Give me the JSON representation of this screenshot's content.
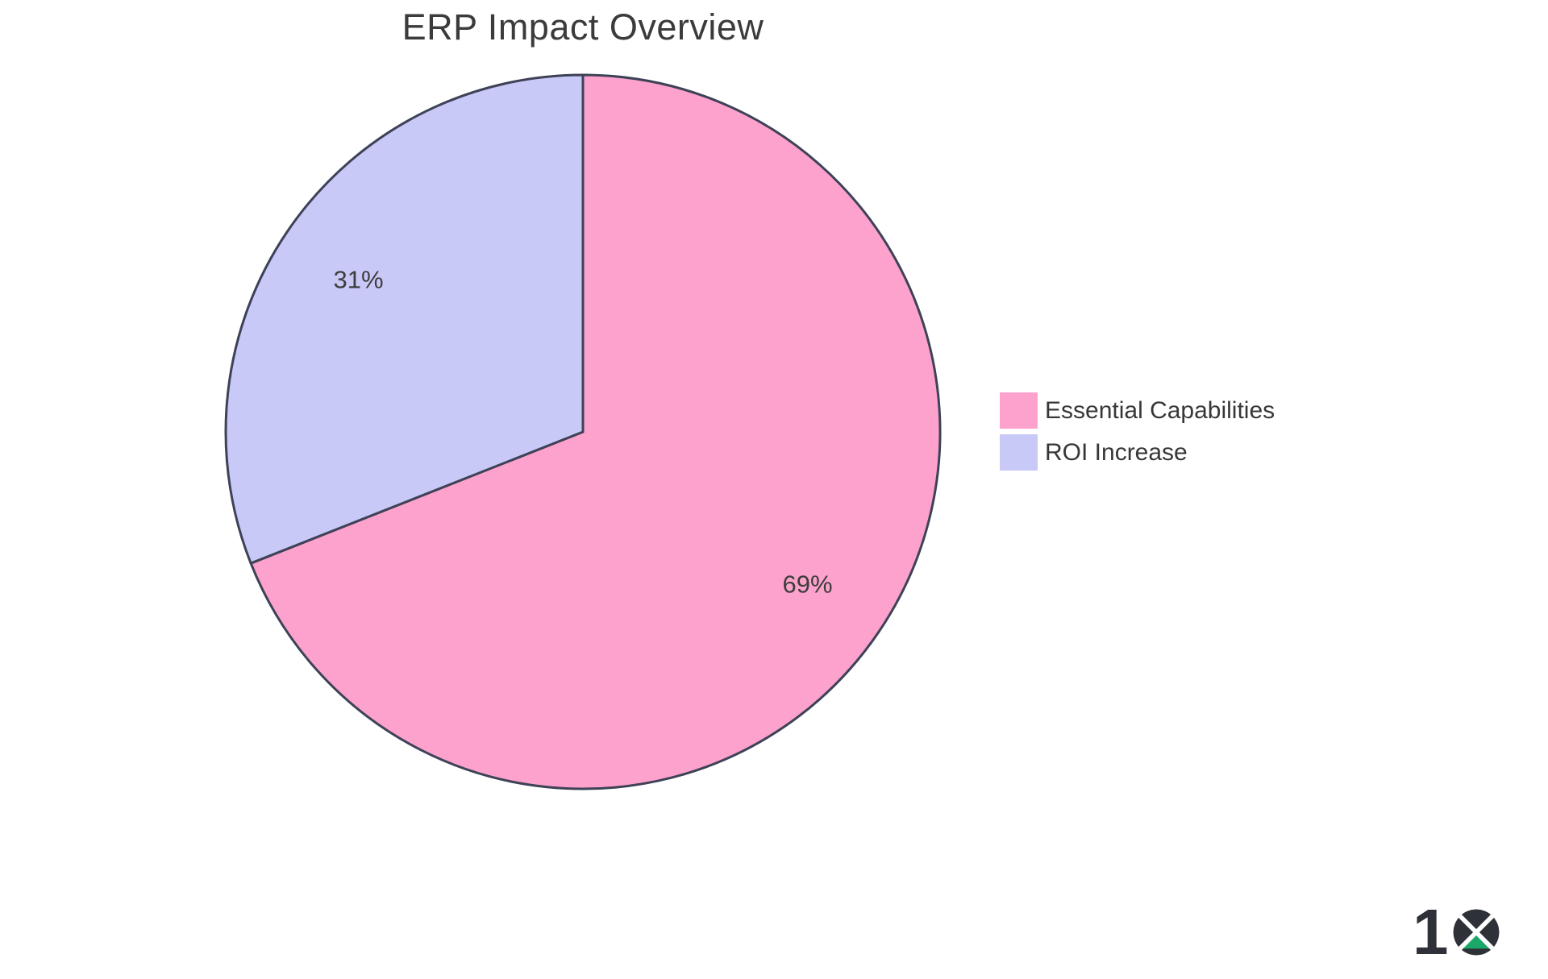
{
  "chart_data": {
    "type": "pie",
    "title": "ERP Impact Overview",
    "slices": [
      {
        "label": "Essential Capabilities",
        "value": 69,
        "display": "69%",
        "color": "#FCA2CD"
      },
      {
        "label": "ROI Increase",
        "value": 31,
        "display": "31%",
        "color": "#C9C9F8"
      }
    ],
    "start_angle_deg": 0,
    "direction": "clockwise",
    "stroke_color": "#3E4257",
    "stroke_width": 3,
    "label_color": "#3D3D3D",
    "legend_position": "right",
    "background": "#FFFFFF"
  },
  "legend": {
    "items": [
      {
        "label": "Essential Capabilities",
        "color": "#FCA2CD"
      },
      {
        "label": "ROI Increase",
        "color": "#C9C9F8"
      }
    ]
  },
  "logo": {
    "text": "1",
    "mark_colors": {
      "dark": "#2E3138",
      "green": "#1AA868",
      "cross": "#FFFFFF"
    }
  }
}
